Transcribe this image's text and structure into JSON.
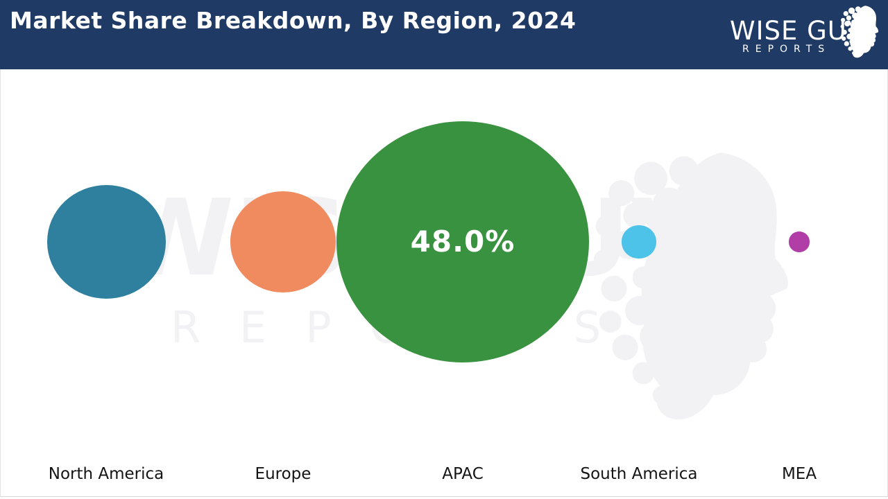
{
  "header": {
    "title": "Market Share Breakdown, By Region, 2024",
    "bg_color": "#203A66",
    "logo": {
      "line1": "WISE GUY",
      "line2": "REPORTS"
    }
  },
  "watermark": {
    "line1": "WISE GUY",
    "line2": "REPORTS"
  },
  "chart_data": {
    "type": "bubble",
    "title": "Market Share Breakdown, By Region, 2024",
    "categories": [
      "North America",
      "Europe",
      "APAC",
      "South America",
      "MEA"
    ],
    "values": [
      22.5,
      20,
      48.0,
      6.5,
      4
    ],
    "data_labels": [
      "",
      "",
      "48.0%",
      "",
      ""
    ],
    "colors": [
      "#2F7F9E",
      "#F08B5F",
      "#38923F",
      "#4DC3EA",
      "#B03EA6"
    ],
    "label_text_color": "#FFFFFF",
    "axis_label_color": "#141414",
    "background": "#FFFFFF",
    "legend": "none",
    "grid": "off"
  }
}
